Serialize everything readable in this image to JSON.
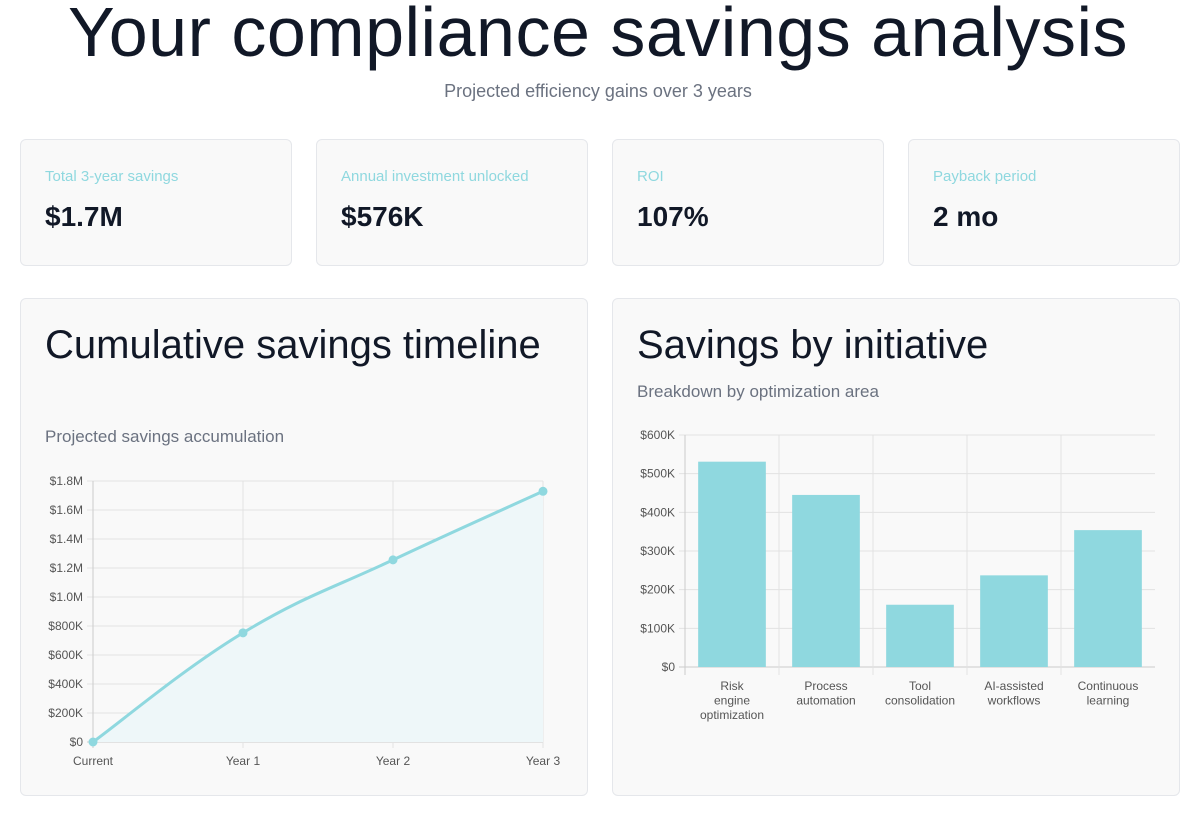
{
  "header": {
    "title": "Your compliance savings analysis",
    "subtitle": "Projected efficiency gains over 3 years"
  },
  "metrics": [
    {
      "label": "Total 3-year savings",
      "value": "$1.7M"
    },
    {
      "label": "Annual investment unlocked",
      "value": "$576K"
    },
    {
      "label": "ROI",
      "value": "107%"
    },
    {
      "label": "Payback period",
      "value": "2 mo"
    }
  ],
  "timeline": {
    "title": "Cumulative savings timeline",
    "description": "Projected savings accumulation"
  },
  "initiative": {
    "title": "Savings by initiative",
    "description": "Breakdown by optimization area"
  },
  "colors": {
    "accent": "#8fd8df",
    "fill": "#eef7f9"
  },
  "chart_data": [
    {
      "type": "line",
      "categories": [
        "Current",
        "Year 1",
        "Year 2",
        "Year 3"
      ],
      "values": [
        0,
        753000,
        1256000,
        1729000
      ],
      "ylim": [
        0,
        1800000
      ],
      "yticks": [
        "$0",
        "$200K",
        "$400K",
        "$600K",
        "$800K",
        "$1.0M",
        "$1.2M",
        "$1.4M",
        "$1.6M",
        "$1.8M"
      ],
      "area_fill": true,
      "grid": true
    },
    {
      "type": "bar",
      "categories": [
        [
          "Risk",
          "engine",
          "optimization"
        ],
        [
          "Process",
          "automation"
        ],
        [
          "Tool",
          "consolidation"
        ],
        [
          "AI-assisted",
          "workflows"
        ],
        [
          "Continuous",
          "learning"
        ]
      ],
      "values": [
        531000,
        445000,
        161000,
        237000,
        354000
      ],
      "ylim": [
        0,
        600000
      ],
      "yticks": [
        "$0",
        "$100K",
        "$200K",
        "$300K",
        "$400K",
        "$500K",
        "$600K"
      ],
      "grid": true
    }
  ]
}
